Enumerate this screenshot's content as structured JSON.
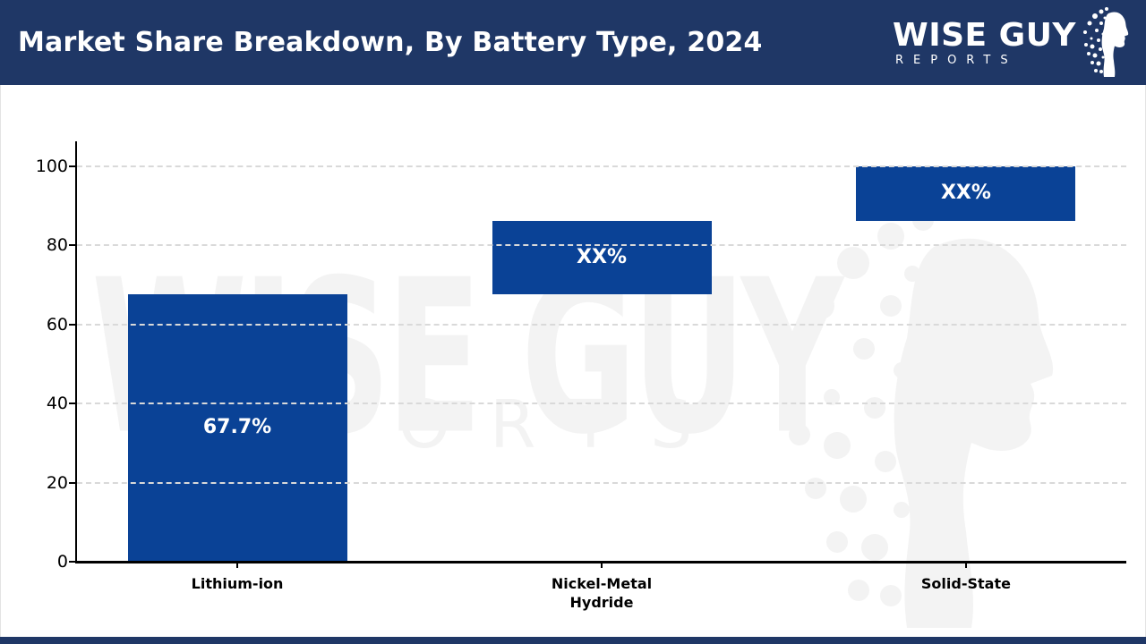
{
  "header": {
    "title": "Market Share Breakdown, By Battery Type, 2024",
    "logo": {
      "wordmark": "WISE GUY",
      "subtext": "REPORTS"
    }
  },
  "watermark": {
    "wordmark": "WISE GUY",
    "subtext": "REPORTS"
  },
  "theme": {
    "navy": "#1f3766",
    "background": "#ffffff",
    "watermark_gray": "#f3f3f3"
  },
  "chart_data": {
    "type": "bar",
    "subtype": "waterfall-market-share",
    "title": "Market Share Breakdown, By Battery Type, 2024",
    "categories": [
      "Lithium-ion",
      "Nickel-Metal\nHydride",
      "Solid-State"
    ],
    "segments": [
      {
        "category": "Lithium-ion",
        "start": 0,
        "end": 67.7,
        "label": "67.7%"
      },
      {
        "category": "Nickel-Metal Hydride",
        "start": 67.7,
        "end": 86.3,
        "label": "XX%"
      },
      {
        "category": "Solid-State",
        "start": 86.3,
        "end": 100,
        "label": "XX%"
      }
    ],
    "xlabel": "",
    "ylabel": "",
    "ylim": [
      0,
      106
    ],
    "yticks": [
      0,
      20,
      40,
      60,
      80,
      100
    ],
    "grid": "horizontal-dashed-over-bars",
    "legend": "none",
    "colors": {
      "bar": "#0a4296",
      "bar_label": "#ffffff",
      "grid": "#d9d9d9",
      "axis": "#000000",
      "tick_label": "#000000"
    }
  }
}
